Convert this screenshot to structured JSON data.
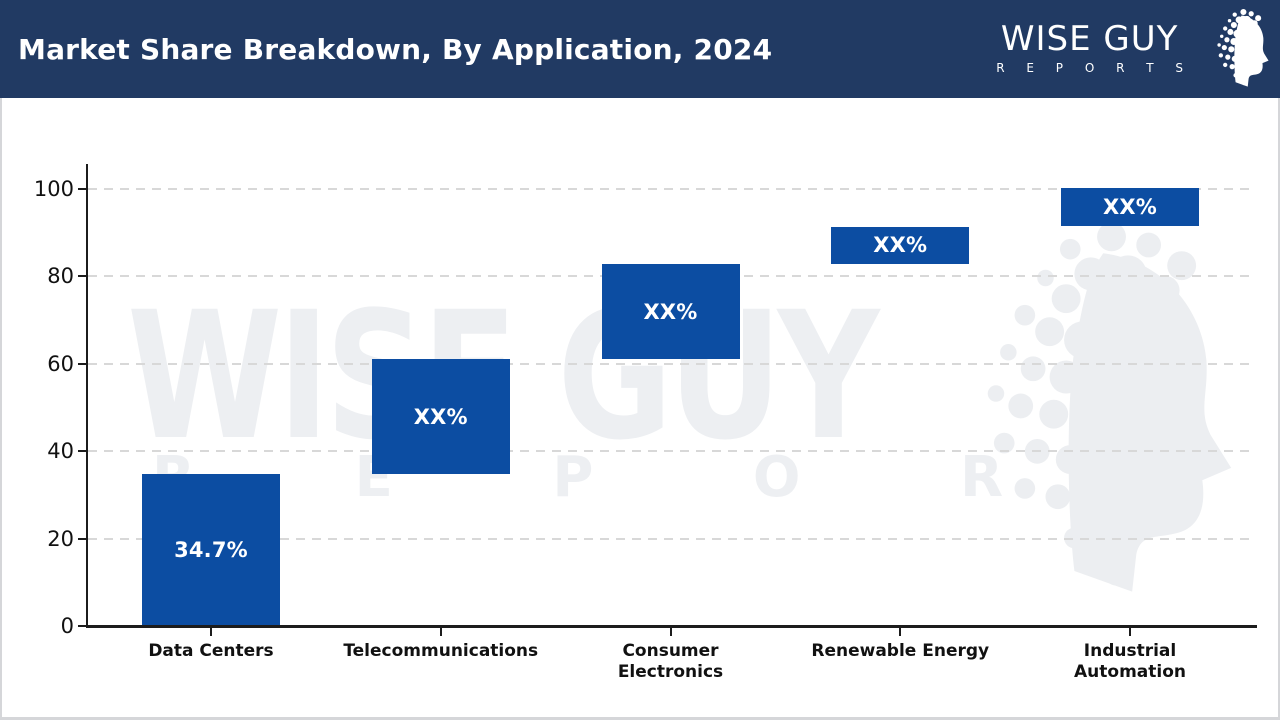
{
  "header": {
    "title": "Market Share Breakdown, By Application, 2024",
    "brand": {
      "name": "WISE GUY",
      "tagline": "R E P O R T S"
    }
  },
  "watermark": {
    "line1": "WISE GUY",
    "line2": "R E P O R T S"
  },
  "colors": {
    "header_bg": "#213a63",
    "bar": "#0c4da2",
    "bar_label": "#ffffff",
    "grid": "#d8d8d8",
    "axis": "#1c1c1c",
    "page_border": "#d5d6d9",
    "watermark": "#edeff2"
  },
  "chart_data": {
    "type": "bar",
    "subtype": "waterfall",
    "title": "Market Share Breakdown, By Application, 2024",
    "xlabel": "",
    "ylabel": "",
    "ylim": [
      0,
      105.5
    ],
    "yticks": [
      0,
      20,
      40,
      60,
      80,
      100
    ],
    "grid": "horizontal-dashed",
    "legend": "none",
    "bar_color": "#0c4da2",
    "label_color": "#ffffff",
    "categories": [
      "Data Centers",
      "Telecommunications",
      "Consumer\nElectronics",
      "Renewable Energy",
      "Industrial\nAutomation"
    ],
    "bars": [
      {
        "category": "Data Centers",
        "start": 0,
        "end": 34.7,
        "value_label": "34.7%"
      },
      {
        "category": "Telecommunications",
        "start": 34.7,
        "end": 61.0,
        "value_label": "XX%"
      },
      {
        "category": "Consumer Electronics",
        "start": 61.0,
        "end": 82.8,
        "value_label": "XX%"
      },
      {
        "category": "Renewable Energy",
        "start": 82.9,
        "end": 91.3,
        "value_label": "XX%"
      },
      {
        "category": "Industrial Automation",
        "start": 91.5,
        "end": 100.3,
        "value_label": "XX%"
      }
    ]
  }
}
